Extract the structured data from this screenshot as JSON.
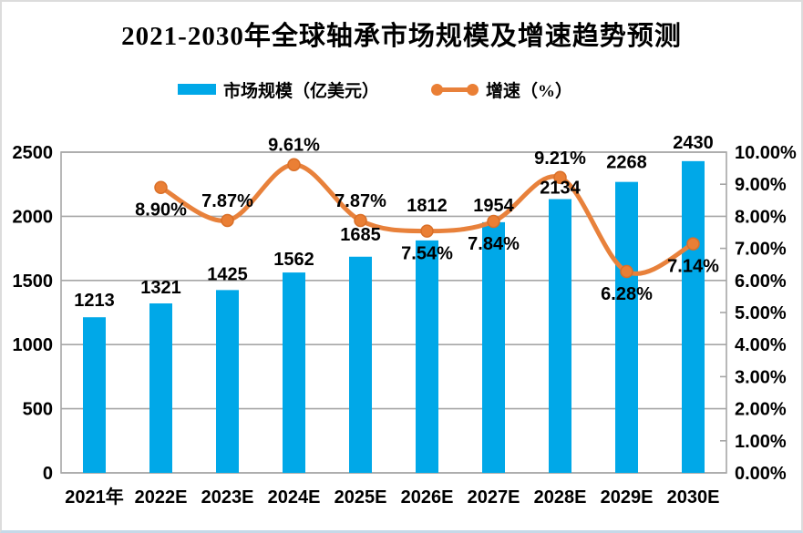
{
  "title": "2021-2030年全球轴承市场规模及增速趋势预测",
  "legend": [
    {
      "label": "市场规模（亿美元）",
      "marker": "bar-swatch"
    },
    {
      "label": "增速（%）",
      "marker": "line-with-dots"
    }
  ],
  "colors": {
    "bar": "#00a8e8",
    "line": "#e8813b",
    "marker_fill": "#ea7f35",
    "marker_stroke": "#d96f28",
    "grid": "#a6a6a6",
    "text": "#000000",
    "frame_border": "#dcdcdc",
    "frame_bottom_border": "#c6d9e8"
  },
  "chart_data": {
    "type": "combo-bar-line",
    "title": "2021-2030年全球轴承市场规模及增速趋势预测",
    "categories": [
      "2021年",
      "2022E",
      "2023E",
      "2024E",
      "2025E",
      "2026E",
      "2027E",
      "2028E",
      "2029E",
      "2030E"
    ],
    "series": [
      {
        "name": "市场规模（亿美元）",
        "type": "bar",
        "axis": "left",
        "values": [
          1213,
          1321,
          1425,
          1562,
          1685,
          1812,
          1954,
          2134,
          2268,
          2430
        ],
        "data_labels": [
          "1213",
          "1321",
          "1425",
          "1562",
          "1685",
          "1812",
          "1954",
          "2134",
          "2268",
          "2430"
        ],
        "label_dy": [
          -12,
          -11,
          -11,
          -8,
          -18,
          -32,
          -12,
          -6,
          -15,
          -14
        ]
      },
      {
        "name": "增速（%）",
        "type": "line",
        "axis": "right",
        "smooth": true,
        "values": [
          null,
          8.9,
          7.87,
          9.61,
          7.87,
          7.54,
          7.84,
          9.21,
          6.28,
          7.14
        ],
        "data_labels": [
          "",
          "8.90%",
          "7.87%",
          "9.61%",
          "7.87%",
          "7.54%",
          "7.84%",
          "9.21%",
          "6.28%",
          "7.14%"
        ],
        "label_pos": [
          null,
          "below",
          "above",
          "above",
          "above",
          "below",
          "below",
          "above",
          "below",
          "below"
        ]
      }
    ],
    "left_axis": {
      "min": 0,
      "max": 2500,
      "step": 500,
      "ticks": [
        "0",
        "500",
        "1000",
        "1500",
        "2000",
        "2500"
      ]
    },
    "right_axis": {
      "min": 0,
      "max": 10,
      "step": 1,
      "ticks": [
        "0.00%",
        "1.00%",
        "2.00%",
        "3.00%",
        "4.00%",
        "5.00%",
        "6.00%",
        "7.00%",
        "8.00%",
        "9.00%",
        "10.00%"
      ]
    },
    "grid": "horizontal-major",
    "legend_position": "top-center"
  }
}
